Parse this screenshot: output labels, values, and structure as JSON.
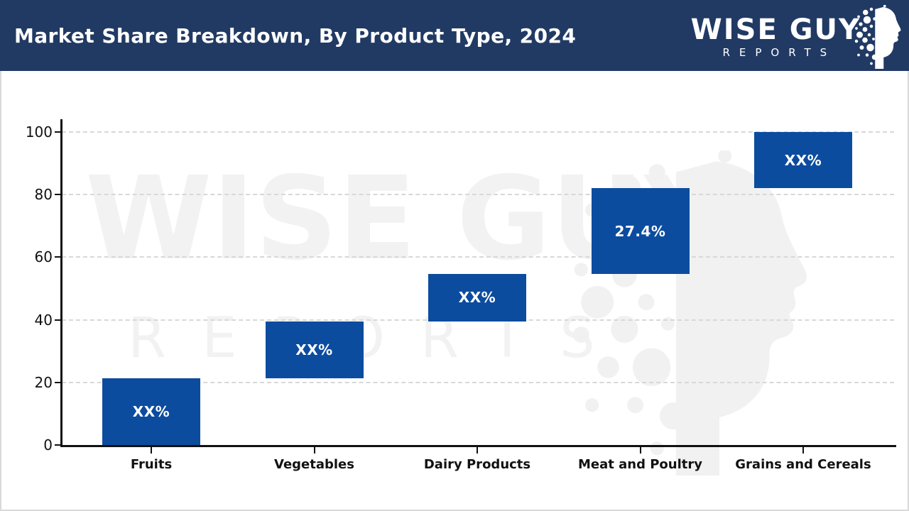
{
  "header": {
    "title": "Market Share Breakdown, By Product Type, 2024",
    "logo": {
      "line1": "WISE GUY",
      "line2": "REPORTS",
      "head_icon": "wiseguy-head-icon"
    },
    "background_color": "#213A64"
  },
  "watermark": {
    "line1": "WISE GUY",
    "line2": "REPORTS",
    "head_icon": "wiseguy-head-icon",
    "color": "#F2F2F2"
  },
  "chart_data": {
    "type": "bar",
    "subtype": "waterfall",
    "title": "Market Share Breakdown, By Product Type, 2024",
    "categories": [
      "Fruits",
      "Vegetables",
      "Dairy Products",
      "Meat and Poultry",
      "Grains and Cereals"
    ],
    "segments": [
      {
        "category": "Fruits",
        "start": 0,
        "end": 21.3,
        "label": "XX%"
      },
      {
        "category": "Vegetables",
        "start": 21.3,
        "end": 39.5,
        "label": "XX%"
      },
      {
        "category": "Dairy Products",
        "start": 39.5,
        "end": 54.6,
        "label": "XX%"
      },
      {
        "category": "Meat and Poultry",
        "start": 54.6,
        "end": 82.0,
        "label": "27.4%"
      },
      {
        "category": "Grains and Cereals",
        "start": 82.0,
        "end": 100.0,
        "label": "XX%"
      }
    ],
    "values": [
      21.3,
      18.2,
      15.1,
      27.4,
      18.0
    ],
    "xlabel": "",
    "ylabel": "",
    "ylim": [
      0,
      100
    ],
    "yticks": [
      0,
      20,
      40,
      60,
      80,
      100
    ],
    "grid": "horizontal-dashed",
    "legend": "none",
    "bar_color": "#0C4C9F",
    "bar_label_color": "#FFFFFF",
    "axis_color": "#111111",
    "gridline_color": "#D8D8D8"
  }
}
